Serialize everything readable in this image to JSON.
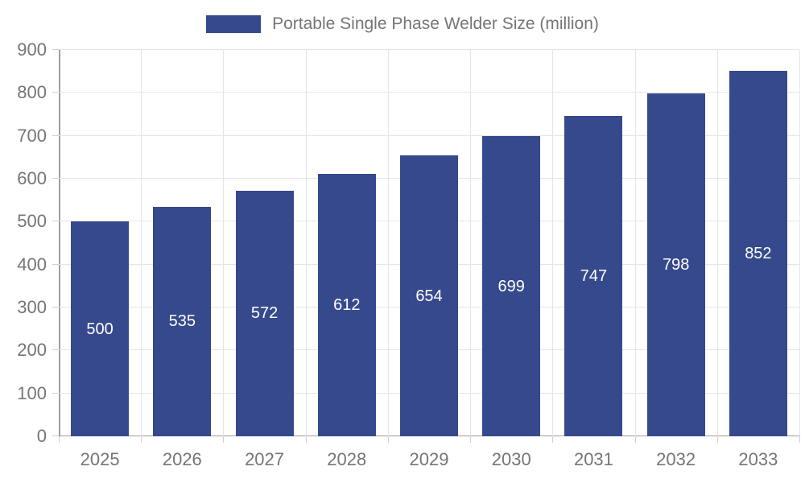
{
  "legend": {
    "label": "Portable Single Phase Welder Size (million)"
  },
  "colors": {
    "background": "#ffffff",
    "bar": "#36498d",
    "grid": "#e5e5e5",
    "axis_line": "#9e9e9e",
    "tick": "#cfcfcf",
    "label": "#757575",
    "value_label": "#ffffff"
  },
  "chart_data": {
    "type": "bar",
    "categories": [
      "2025",
      "2026",
      "2027",
      "2028",
      "2029",
      "2030",
      "2031",
      "2032",
      "2033"
    ],
    "values": [
      500,
      535,
      572,
      612,
      654,
      699,
      747,
      798,
      852
    ],
    "title": "Portable Single Phase Welder Size (million)",
    "xlabel": "",
    "ylabel": "",
    "ylim": [
      0,
      900
    ],
    "ytick_step": 100,
    "grid": true,
    "legend_position": "top"
  }
}
